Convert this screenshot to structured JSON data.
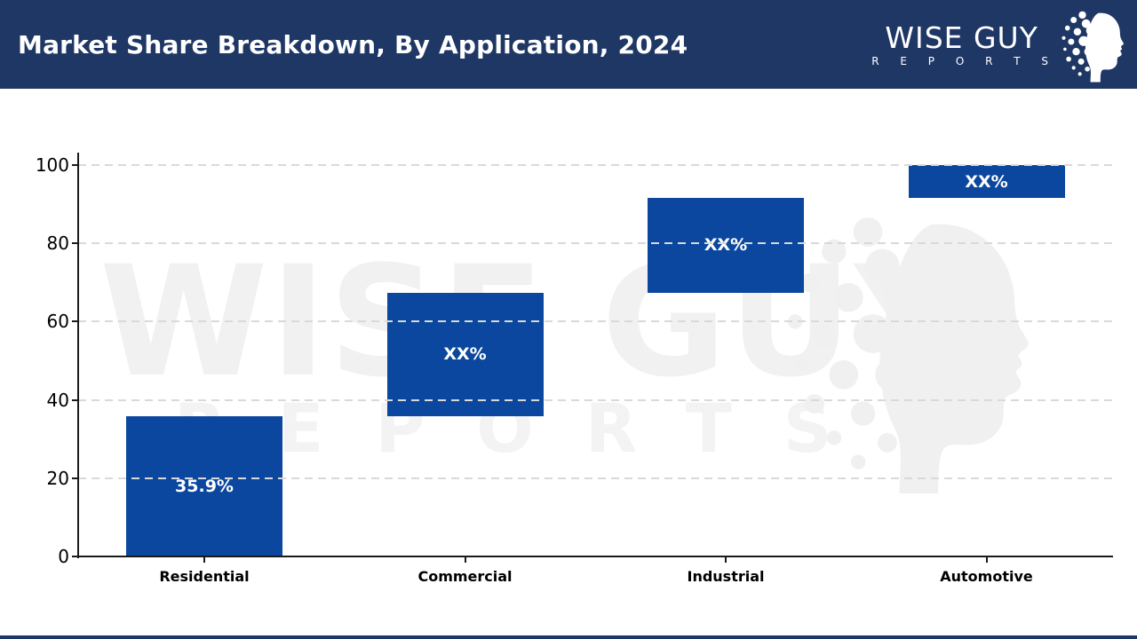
{
  "header": {
    "title": "Market Share Breakdown, By Application, 2024",
    "brand": {
      "line1": "WISE GUY",
      "line2": "R E P O R T S"
    },
    "bg_color": "#1f3765"
  },
  "watermark": {
    "line1": "WISE GUY",
    "line2": "REPORTS"
  },
  "chart_data": {
    "type": "bar",
    "subtype": "waterfall-cumulative",
    "title": "Market Share Breakdown, By Application, 2024",
    "categories": [
      "Residential",
      "Commercial",
      "Industrial",
      "Automotive"
    ],
    "series": [
      {
        "name": "Market share by application",
        "segments": [
          {
            "category": "Residential",
            "start": 0,
            "end": 35.9
          },
          {
            "category": "Commercial",
            "start": 35.9,
            "end": 67.4
          },
          {
            "category": "Industrial",
            "start": 67.4,
            "end": 91.6
          },
          {
            "category": "Automotive",
            "start": 91.6,
            "end": 100
          }
        ]
      }
    ],
    "bar_labels": [
      "35.9%",
      "XX%",
      "XX%",
      "XX%"
    ],
    "yticks": [
      0,
      20,
      40,
      60,
      80,
      100
    ],
    "ytick_labels": [
      "0",
      "20",
      "40",
      "60",
      "80",
      "100"
    ],
    "ylim": [
      0,
      103
    ],
    "xlabel": "",
    "ylabel": "",
    "grid": "horizontal-dashed-above-bars",
    "bar_color": "#0b479e",
    "bar_label_color": "#ffffff",
    "legend": "none"
  }
}
